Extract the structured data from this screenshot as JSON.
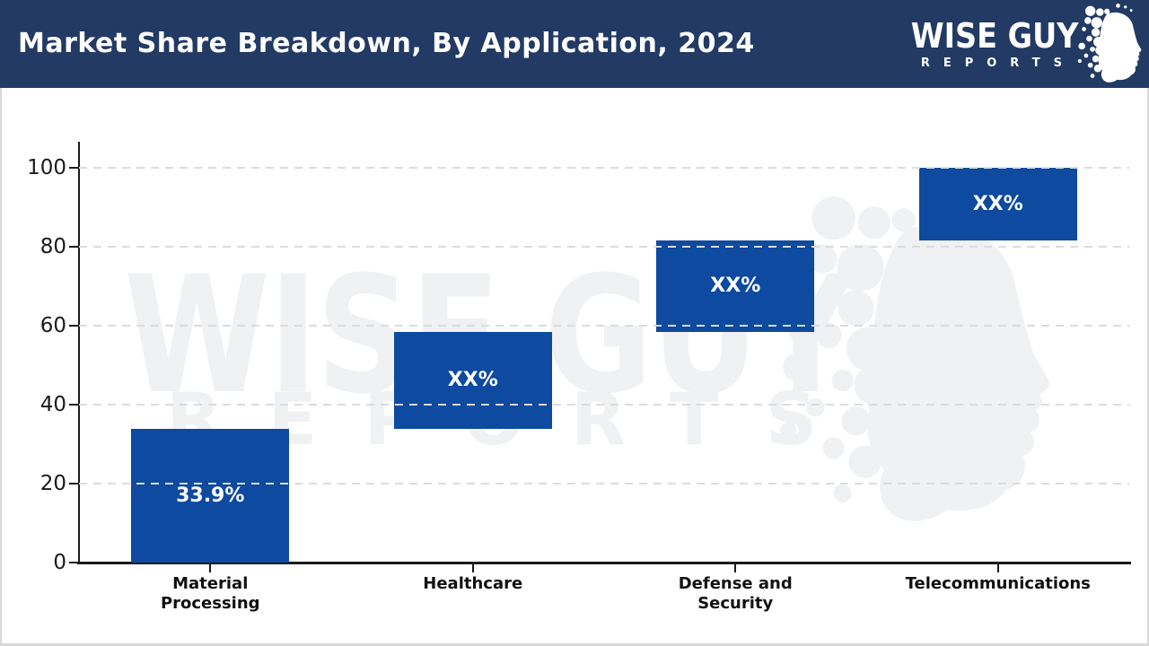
{
  "header": {
    "title": "Market Share Breakdown, By Application, 2024",
    "logo": {
      "line1": "WISE GUY",
      "line2": "REPORTS"
    }
  },
  "watermark": {
    "line1": "WISE GUY",
    "line2": "REPORTS"
  },
  "chart_data": {
    "type": "bar",
    "subtype": "waterfall",
    "title": "Market Share Breakdown, By Application, 2024",
    "categories": [
      "Material Processing",
      "Healthcare",
      "Defense and Security",
      "Telecommunications"
    ],
    "categories_display": [
      [
        "Material",
        "Processing"
      ],
      [
        "Healthcare"
      ],
      [
        "Defense and",
        "Security"
      ],
      [
        "Telecommunications"
      ]
    ],
    "segments": [
      {
        "category": "Material Processing",
        "start": 0,
        "end": 33.9,
        "label": "33.9%"
      },
      {
        "category": "Healthcare",
        "start": 33.9,
        "end": 58.4,
        "label": "XX%"
      },
      {
        "category": "Defense and Security",
        "start": 58.4,
        "end": 81.6,
        "label": "XX%"
      },
      {
        "category": "Telecommunications",
        "start": 81.6,
        "end": 100,
        "label": "XX%"
      }
    ],
    "ylim": [
      0,
      107
    ],
    "yticks": [
      0,
      20,
      40,
      60,
      80,
      100
    ],
    "grid": {
      "horizontal": true,
      "style": "dashed"
    },
    "legend": null,
    "colors": {
      "bar": "#0d4aa0",
      "bar_label": "#ffffff",
      "axis": "#1a1a1a",
      "tick_label": "#1a1a1a",
      "grid": "#dcdcdc",
      "header_bg": "#223a64",
      "watermark": "#f0f1f3"
    }
  }
}
